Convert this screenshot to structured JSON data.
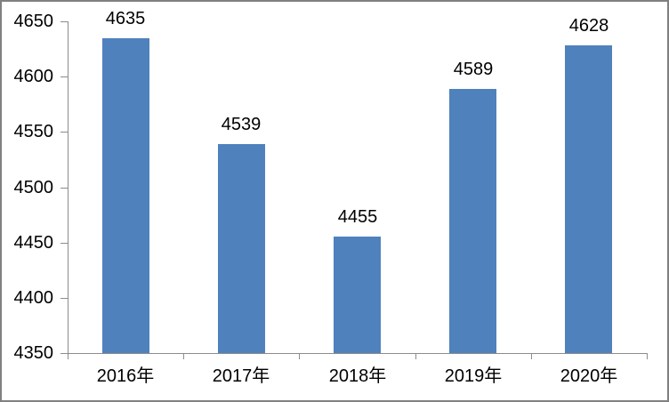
{
  "chart_data": {
    "type": "bar",
    "categories": [
      "2016年",
      "2017年",
      "2018年",
      "2019年",
      "2020年"
    ],
    "values": [
      4635,
      4539,
      4455,
      4589,
      4628
    ],
    "title": "",
    "xlabel": "",
    "ylabel": "",
    "ylim": [
      4350,
      4650
    ],
    "ytick_step": 50,
    "yticks": [
      4650,
      4600,
      4550,
      4500,
      4450,
      4400,
      4350
    ],
    "grid": false,
    "legend_position": "none",
    "data_labels_shown": true,
    "bar_orientation": "vertical"
  },
  "colors": {
    "bar": "#4F81BD",
    "axis": "#8C8C8C",
    "text": "#000000",
    "frame_border": "#808080",
    "background": "#FFFFFF"
  }
}
